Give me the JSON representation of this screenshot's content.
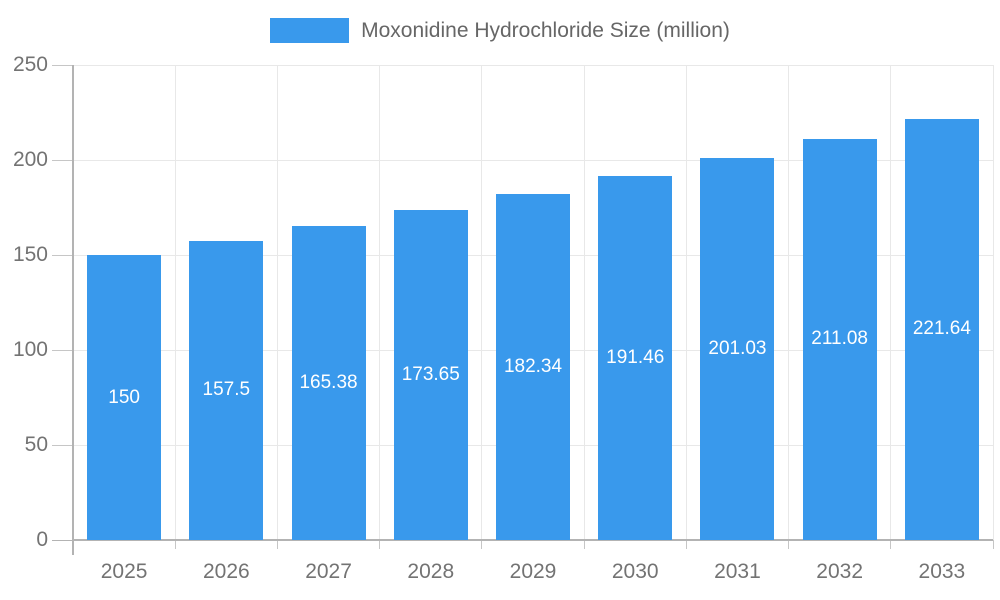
{
  "legend": {
    "label": "Moxonidine Hydrochloride Size (million)"
  },
  "chart_data": {
    "type": "bar",
    "title": "Moxonidine Hydrochloride Size (million)",
    "xlabel": "",
    "ylabel": "",
    "categories": [
      "2025",
      "2026",
      "2027",
      "2028",
      "2029",
      "2030",
      "2031",
      "2032",
      "2033"
    ],
    "series": [
      {
        "name": "Moxonidine Hydrochloride Size (million)",
        "values": [
          150,
          157.5,
          165.38,
          173.65,
          182.34,
          191.46,
          201.03,
          211.08,
          221.64
        ]
      }
    ],
    "value_labels": [
      "150",
      "157.5",
      "165.38",
      "173.65",
      "182.34",
      "191.46",
      "201.03",
      "211.08",
      "221.64"
    ],
    "ylim": [
      0,
      250
    ],
    "y_ticks": [
      0,
      50,
      100,
      150,
      200,
      250
    ],
    "grid": true,
    "legend_position": "top-center",
    "colors": {
      "bar": "#3999ec",
      "grid": "#e8e8e8",
      "axis": "#b3b3b3",
      "tick": "#c6c6c6",
      "axis_label": "#737373",
      "value_label": "#ffffff",
      "legend_text": "#666666"
    }
  }
}
